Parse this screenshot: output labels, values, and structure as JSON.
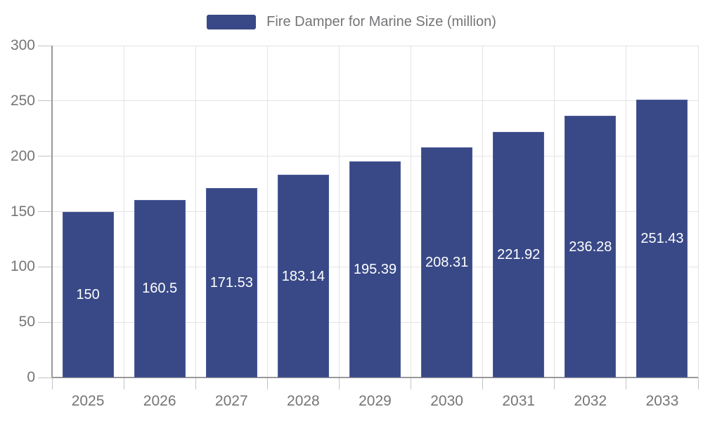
{
  "colors": {
    "bar": "#394987",
    "bar_border": "#4e5c98",
    "grid": "#e4e4e4",
    "axis_line": "#999999",
    "tick": "#c3c3c3",
    "axis_text": "#757575",
    "legend_text": "#757578",
    "value_text": "#ffffff",
    "background": "#ffffff"
  },
  "chart_data": {
    "type": "bar",
    "title": "Fire Damper for Marine Size (million)",
    "legend": [
      "Fire Damper for Marine Size (million)"
    ],
    "categories": [
      "2025",
      "2026",
      "2027",
      "2028",
      "2029",
      "2030",
      "2031",
      "2032",
      "2033"
    ],
    "series": [
      {
        "name": "Fire Damper for Marine Size (million)",
        "values": [
          150,
          160.5,
          171.53,
          183.14,
          195.39,
          208.31,
          221.92,
          236.28,
          251.43
        ],
        "labels": [
          "150",
          "160.5",
          "171.53",
          "183.14",
          "195.39",
          "208.31",
          "221.92",
          "236.28",
          "251.43"
        ],
        "color": "#394987"
      }
    ],
    "xlabel": "",
    "ylabel": "",
    "ylim": [
      0,
      300
    ],
    "yticks": [
      0,
      50,
      100,
      150,
      200,
      250,
      300
    ],
    "grid": true,
    "legend_position": "top-center",
    "value_label_position": "inside-middle"
  }
}
